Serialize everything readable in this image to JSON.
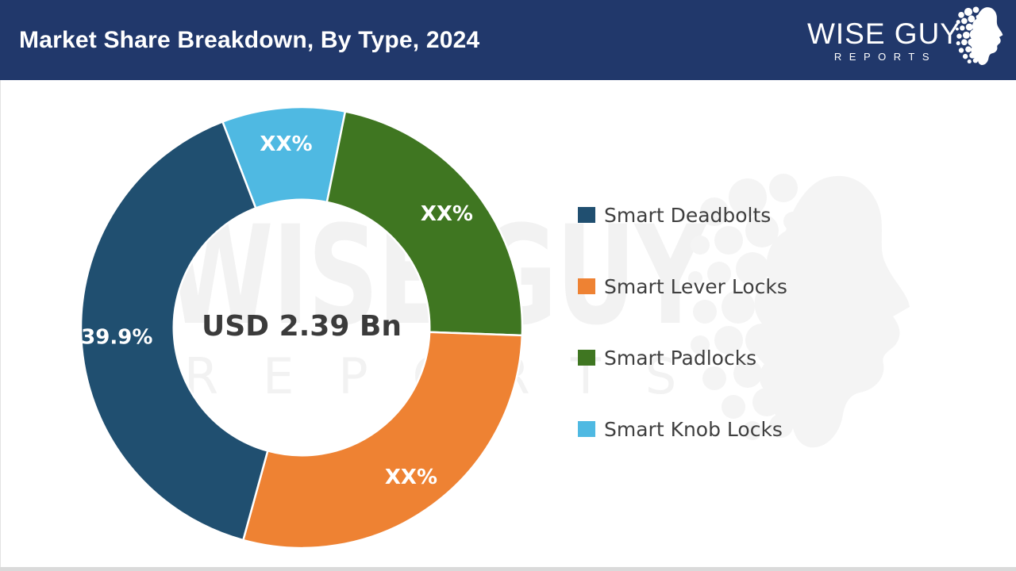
{
  "header": {
    "title": "Market Share Breakdown, By Type, 2024",
    "bg_color": "#21386B",
    "logo": {
      "line1": "WISE GUY",
      "line2": "REPORTS"
    }
  },
  "watermark": {
    "line1": "WISE GUY",
    "line2": "REPORTS"
  },
  "chart_data": {
    "type": "donut",
    "title": "Market Share Breakdown, By Type, 2024",
    "center_label": "USD 2.39 Bn",
    "start_angle_deg": -21,
    "donut_hole_ratio": 0.58,
    "legend_position": "right",
    "segments": [
      {
        "name": "Smart Knob Locks",
        "display_label": "XX%",
        "value_pct": 9.0,
        "color": "#4FB9E2"
      },
      {
        "name": "Smart Padlocks",
        "display_label": "XX%",
        "value_pct": 22.4,
        "color": "#3F7621"
      },
      {
        "name": "Smart Lever Locks",
        "display_label": "XX%",
        "value_pct": 28.7,
        "color": "#EE8233"
      },
      {
        "name": "Smart Deadbolts",
        "display_label": "39.9%",
        "value_pct": 39.9,
        "color": "#204F70"
      }
    ]
  },
  "legend": {
    "items": [
      {
        "label": "Smart Deadbolts",
        "color": "#204F70"
      },
      {
        "label": "Smart Lever Locks",
        "color": "#EE8233"
      },
      {
        "label": "Smart Padlocks",
        "color": "#3F7621"
      },
      {
        "label": "Smart Knob Locks",
        "color": "#4FB9E2"
      }
    ]
  }
}
